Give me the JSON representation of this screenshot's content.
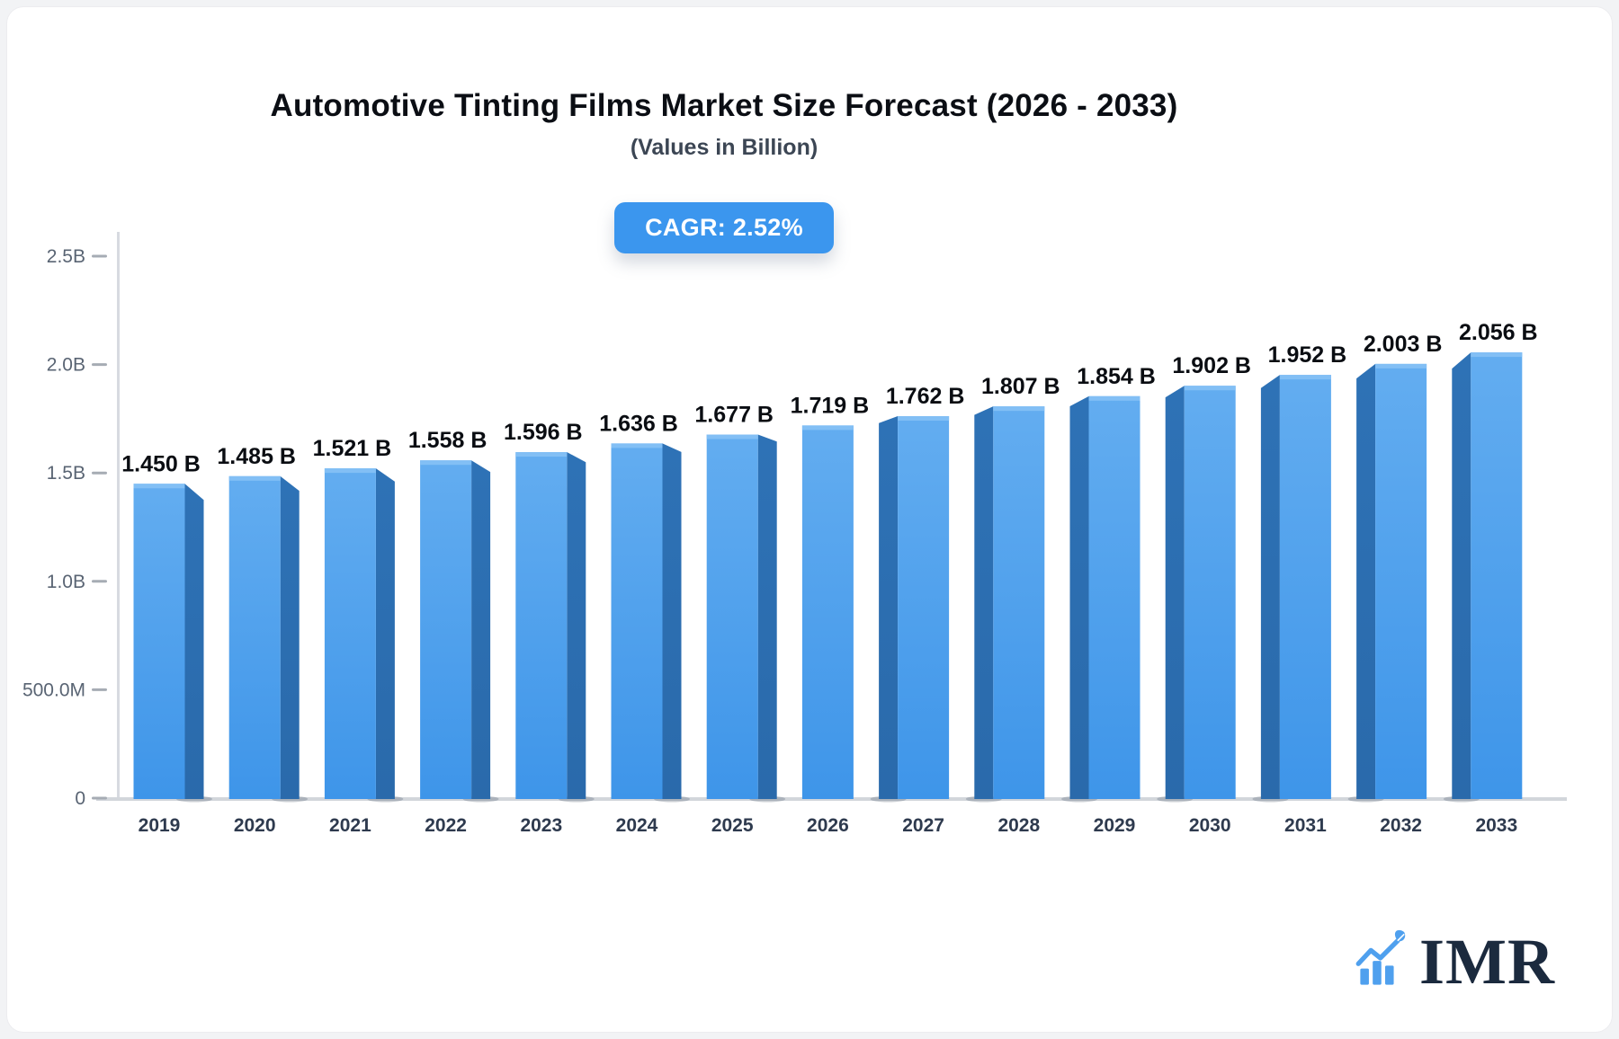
{
  "title": "Automotive Tinting Films Market Size Forecast (2026 - 2033)",
  "subtitle": "(Values in Billion)",
  "cagr_badge": "CAGR: 2.52%",
  "logo": {
    "text": "IMR"
  },
  "chart_data": {
    "type": "bar",
    "title": "Automotive Tinting Films Market Size Forecast (2026 - 2033)",
    "subtitle": "(Values in Billion)",
    "units": "Billion",
    "categories": [
      "2019",
      "2020",
      "2021",
      "2022",
      "2023",
      "2024",
      "2025",
      "2026",
      "2027",
      "2028",
      "2029",
      "2030",
      "2031",
      "2032",
      "2033"
    ],
    "values": [
      1.45,
      1.485,
      1.521,
      1.558,
      1.596,
      1.636,
      1.677,
      1.719,
      1.762,
      1.807,
      1.854,
      1.902,
      1.952,
      2.003,
      2.056
    ],
    "value_labels": [
      "1.450 B",
      "1.485 B",
      "1.521 B",
      "1.558 B",
      "1.596 B",
      "1.636 B",
      "1.677 B",
      "1.719 B",
      "1.762 B",
      "1.807 B",
      "1.854 B",
      "1.902 B",
      "1.952 B",
      "2.003 B",
      "2.056 B"
    ],
    "ylim": [
      0,
      2.5
    ],
    "ytick_labels": [
      "2.5B",
      "2.0B",
      "1.5B",
      "1.0B",
      "500.0M",
      "0"
    ],
    "ytick_values": [
      2.5,
      2.0,
      1.5,
      1.0,
      0.5,
      0
    ],
    "grid": false,
    "legend": "none",
    "cagr": "2.52%",
    "style": {
      "bar_front_top": "#63adf0",
      "bar_front_bottom": "#3e95e9",
      "bar_top_strip": "#82bff5",
      "bar_side": "#2e72b6",
      "bar_side_dark": "#2a6aab",
      "accent": "#3b96ee",
      "axis_line": "#d7dae0",
      "baseline": "#d2d6db",
      "tick_dash": "#a6acb4",
      "ytick_text": "#596473",
      "xtick_text": "#2e3a4e",
      "value_text": "#0a0d12",
      "shadow": "#475569"
    }
  }
}
